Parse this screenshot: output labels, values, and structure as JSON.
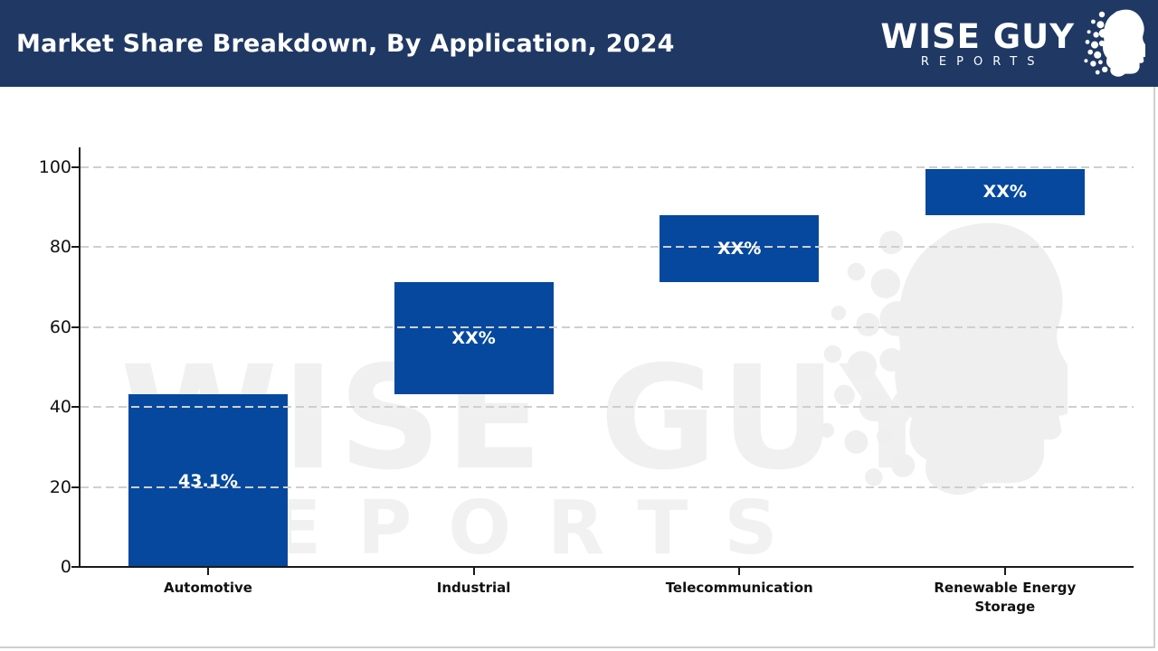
{
  "header": {
    "title": "Market Share Breakdown, By Application, 2024",
    "logo": {
      "line1": "WISE GUY",
      "line2": "REPORTS"
    }
  },
  "watermark": {
    "line1": "WISE GUY",
    "line2": "REPORTS"
  },
  "chart_data": {
    "type": "bar",
    "subtype": "stacked-waterfall",
    "title": "Market Share Breakdown, By Application, 2024",
    "xlabel": "",
    "ylabel": "",
    "ylim": [
      0,
      105
    ],
    "y_ticks": [
      0,
      20,
      40,
      60,
      80,
      100
    ],
    "grid": "horizontal-dashed",
    "legend": "none",
    "bar_color": "#05489e",
    "categories": [
      "Automotive",
      "Industrial",
      "Telecommunication",
      "Renewable Energy Storage"
    ],
    "bars": [
      {
        "category": "Automotive",
        "start": 0,
        "end": 43.1,
        "label": "43.1%"
      },
      {
        "category": "Industrial",
        "start": 43.1,
        "end": 71.3,
        "label": "XX%"
      },
      {
        "category": "Telecommunication",
        "start": 71.3,
        "end": 88.0,
        "label": "XX%"
      },
      {
        "category": "Renewable Energy Storage",
        "start": 88.0,
        "end": 99.6,
        "label": "XX%"
      }
    ]
  }
}
